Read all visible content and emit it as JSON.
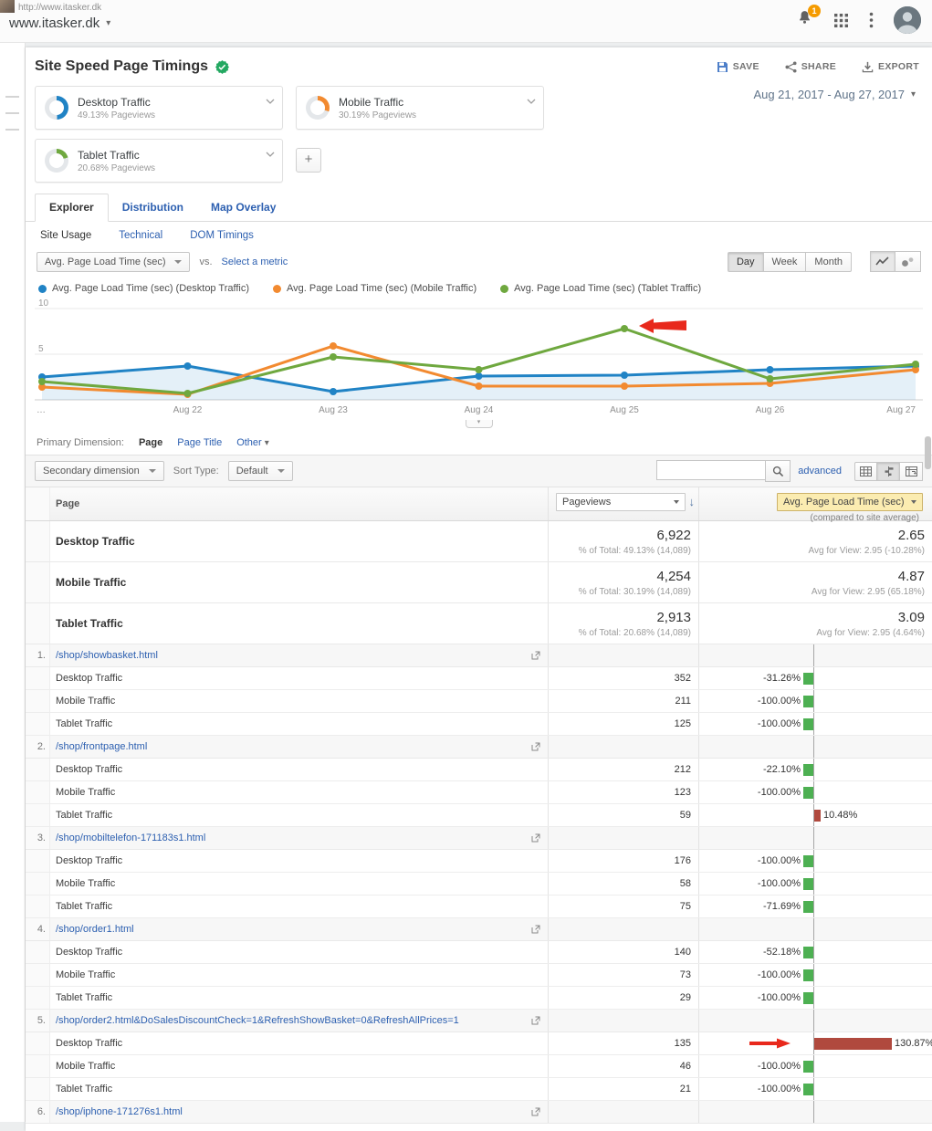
{
  "topbar": {
    "property_url": "http://www.itasker.dk",
    "account_name": "www.itasker.dk",
    "notification_count": "1"
  },
  "header": {
    "title": "Site Speed Page Timings",
    "save": "SAVE",
    "share": "SHARE",
    "export": "EXPORT",
    "date_range": "Aug 21, 2017 - Aug 27, 2017"
  },
  "segments": [
    {
      "name": "Desktop Traffic",
      "detail": "49.13% Pageviews",
      "pct": 49.13,
      "color": "#2083c5"
    },
    {
      "name": "Mobile Traffic",
      "detail": "30.19% Pageviews",
      "pct": 30.19,
      "color": "#f28a30"
    },
    {
      "name": "Tablet Traffic",
      "detail": "20.68% Pageviews",
      "pct": 20.68,
      "color": "#6fa83f"
    }
  ],
  "tabs": {
    "explorer": "Explorer",
    "distribution": "Distribution",
    "map_overlay": "Map Overlay"
  },
  "subtabs": {
    "site_usage": "Site Usage",
    "technical": "Technical",
    "dom_timings": "DOM Timings"
  },
  "metric_bar": {
    "metric": "Avg. Page Load Time (sec)",
    "vs_label": "vs.",
    "select_metric": "Select a metric",
    "day": "Day",
    "week": "Week",
    "month": "Month"
  },
  "chart_data": {
    "type": "line",
    "x": [
      "…",
      "Aug 22",
      "Aug 23",
      "Aug 24",
      "Aug 25",
      "Aug 26",
      "Aug 27"
    ],
    "ylim": [
      0,
      10
    ],
    "yticks": [
      5,
      10
    ],
    "grid": "horizontal only",
    "legend_position": "top",
    "series": [
      {
        "name": "Avg. Page Load Time (sec) (Desktop Traffic)",
        "color": "#2083c5",
        "area": true,
        "values": [
          2.5,
          3.7,
          0.9,
          2.6,
          2.7,
          3.3,
          3.7
        ]
      },
      {
        "name": "Avg. Page Load Time (sec) (Mobile Traffic)",
        "color": "#f28a30",
        "values": [
          1.4,
          0.6,
          5.9,
          1.5,
          1.5,
          1.8,
          3.3
        ]
      },
      {
        "name": "Avg. Page Load Time (sec) (Tablet Traffic)",
        "color": "#6fa83f",
        "values": [
          2.0,
          0.7,
          4.7,
          3.3,
          7.8,
          2.3,
          3.9
        ]
      }
    ],
    "annotation": "red arrow pointing at Tablet Traffic peak on Aug 25"
  },
  "primary_dimension": {
    "label": "Primary Dimension:",
    "active": "Page",
    "links": [
      "Page Title",
      "Other"
    ]
  },
  "toolbar": {
    "secondary_dimension": "Secondary dimension",
    "sort_type_label": "Sort Type:",
    "sort_type_value": "Default",
    "search_value": "",
    "advanced": "advanced"
  },
  "table": {
    "col_page": "Page",
    "col_pageviews": "Pageviews",
    "col_avg": "Avg. Page Load Time (sec)",
    "col_avg_sub": "(compared to site average)",
    "summary": [
      {
        "name": "Desktop Traffic",
        "pageviews": "6,922",
        "pv_sub": "% of Total: 49.13% (14,089)",
        "avg": "2.65",
        "avg_sub": "Avg for View: 2.95 (-10.28%)"
      },
      {
        "name": "Mobile Traffic",
        "pageviews": "4,254",
        "pv_sub": "% of Total: 30.19% (14,089)",
        "avg": "4.87",
        "avg_sub": "Avg for View: 2.95 (65.18%)"
      },
      {
        "name": "Tablet Traffic",
        "pageviews": "2,913",
        "pv_sub": "% of Total: 20.68% (14,089)",
        "avg": "3.09",
        "avg_sub": "Avg for View: 2.95 (4.64%)"
      }
    ],
    "rows": [
      {
        "num": "1.",
        "url": "/shop/showbasket.html",
        "subs": [
          {
            "name": "Desktop Traffic",
            "pageviews": "352",
            "delta": -31.26,
            "delta_label": "-31.26%"
          },
          {
            "name": "Mobile Traffic",
            "pageviews": "211",
            "delta": -100.0,
            "delta_label": "-100.00%"
          },
          {
            "name": "Tablet Traffic",
            "pageviews": "125",
            "delta": -100.0,
            "delta_label": "-100.00%"
          }
        ]
      },
      {
        "num": "2.",
        "url": "/shop/frontpage.html",
        "subs": [
          {
            "name": "Desktop Traffic",
            "pageviews": "212",
            "delta": -22.1,
            "delta_label": "-22.10%"
          },
          {
            "name": "Mobile Traffic",
            "pageviews": "123",
            "delta": -100.0,
            "delta_label": "-100.00%"
          },
          {
            "name": "Tablet Traffic",
            "pageviews": "59",
            "delta": 10.48,
            "delta_label": "10.48%"
          }
        ]
      },
      {
        "num": "3.",
        "url": "/shop/mobiltelefon-171183s1.html",
        "subs": [
          {
            "name": "Desktop Traffic",
            "pageviews": "176",
            "delta": -100.0,
            "delta_label": "-100.00%"
          },
          {
            "name": "Mobile Traffic",
            "pageviews": "58",
            "delta": -100.0,
            "delta_label": "-100.00%"
          },
          {
            "name": "Tablet Traffic",
            "pageviews": "75",
            "delta": -71.69,
            "delta_label": "-71.69%"
          }
        ]
      },
      {
        "num": "4.",
        "url": "/shop/order1.html",
        "subs": [
          {
            "name": "Desktop Traffic",
            "pageviews": "140",
            "delta": -52.18,
            "delta_label": "-52.18%"
          },
          {
            "name": "Mobile Traffic",
            "pageviews": "73",
            "delta": -100.0,
            "delta_label": "-100.00%"
          },
          {
            "name": "Tablet Traffic",
            "pageviews": "29",
            "delta": -100.0,
            "delta_label": "-100.00%"
          }
        ]
      },
      {
        "num": "5.",
        "url": "/shop/order2.html&DoSalesDiscountCheck=1&RefreshShowBasket=0&RefreshAllPrices=1",
        "subs": [
          {
            "name": "Desktop Traffic",
            "pageviews": "135",
            "delta": 130.87,
            "delta_label": "130.87%",
            "arrow": true
          },
          {
            "name": "Mobile Traffic",
            "pageviews": "46",
            "delta": -100.0,
            "delta_label": "-100.00%"
          },
          {
            "name": "Tablet Traffic",
            "pageviews": "21",
            "delta": -100.0,
            "delta_label": "-100.00%"
          }
        ]
      },
      {
        "num": "6.",
        "url": "/shop/iphone-171276s1.html",
        "subs": []
      }
    ]
  },
  "colors": {
    "bar_negative": "#4db052",
    "bar_positive": "#b0493e",
    "arrow_red": "#e8291c",
    "badge_orange": "#f59b00",
    "check_green": "#23a861"
  }
}
